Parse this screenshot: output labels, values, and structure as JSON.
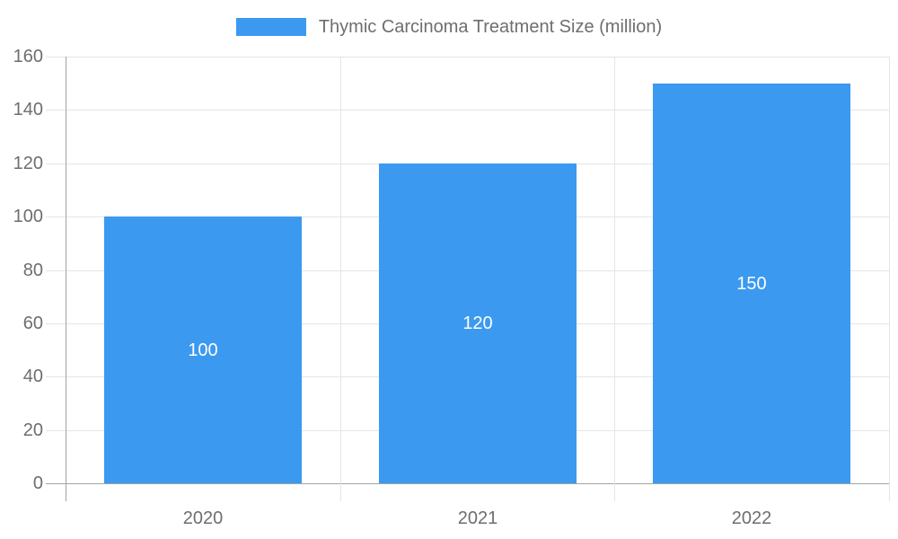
{
  "chart_data": {
    "type": "bar",
    "legend_label": "Thymic Carcinoma Treatment Size (million)",
    "legend_position": "top",
    "categories": [
      "2020",
      "2021",
      "2022"
    ],
    "values": [
      100,
      120,
      150
    ],
    "bar_value_labels": [
      "100",
      "120",
      "150"
    ],
    "ylim": [
      0,
      160
    ],
    "yticks": [
      0,
      20,
      40,
      60,
      80,
      100,
      120,
      140,
      160
    ],
    "grid": true,
    "colors": {
      "bar": "#3b99f0",
      "bar_label": "#ffffff",
      "axis_label": "#6e6e6e",
      "grid_line": "#e5e5e5",
      "axis_line": "#a3a3a3",
      "background": "#ffffff"
    }
  }
}
